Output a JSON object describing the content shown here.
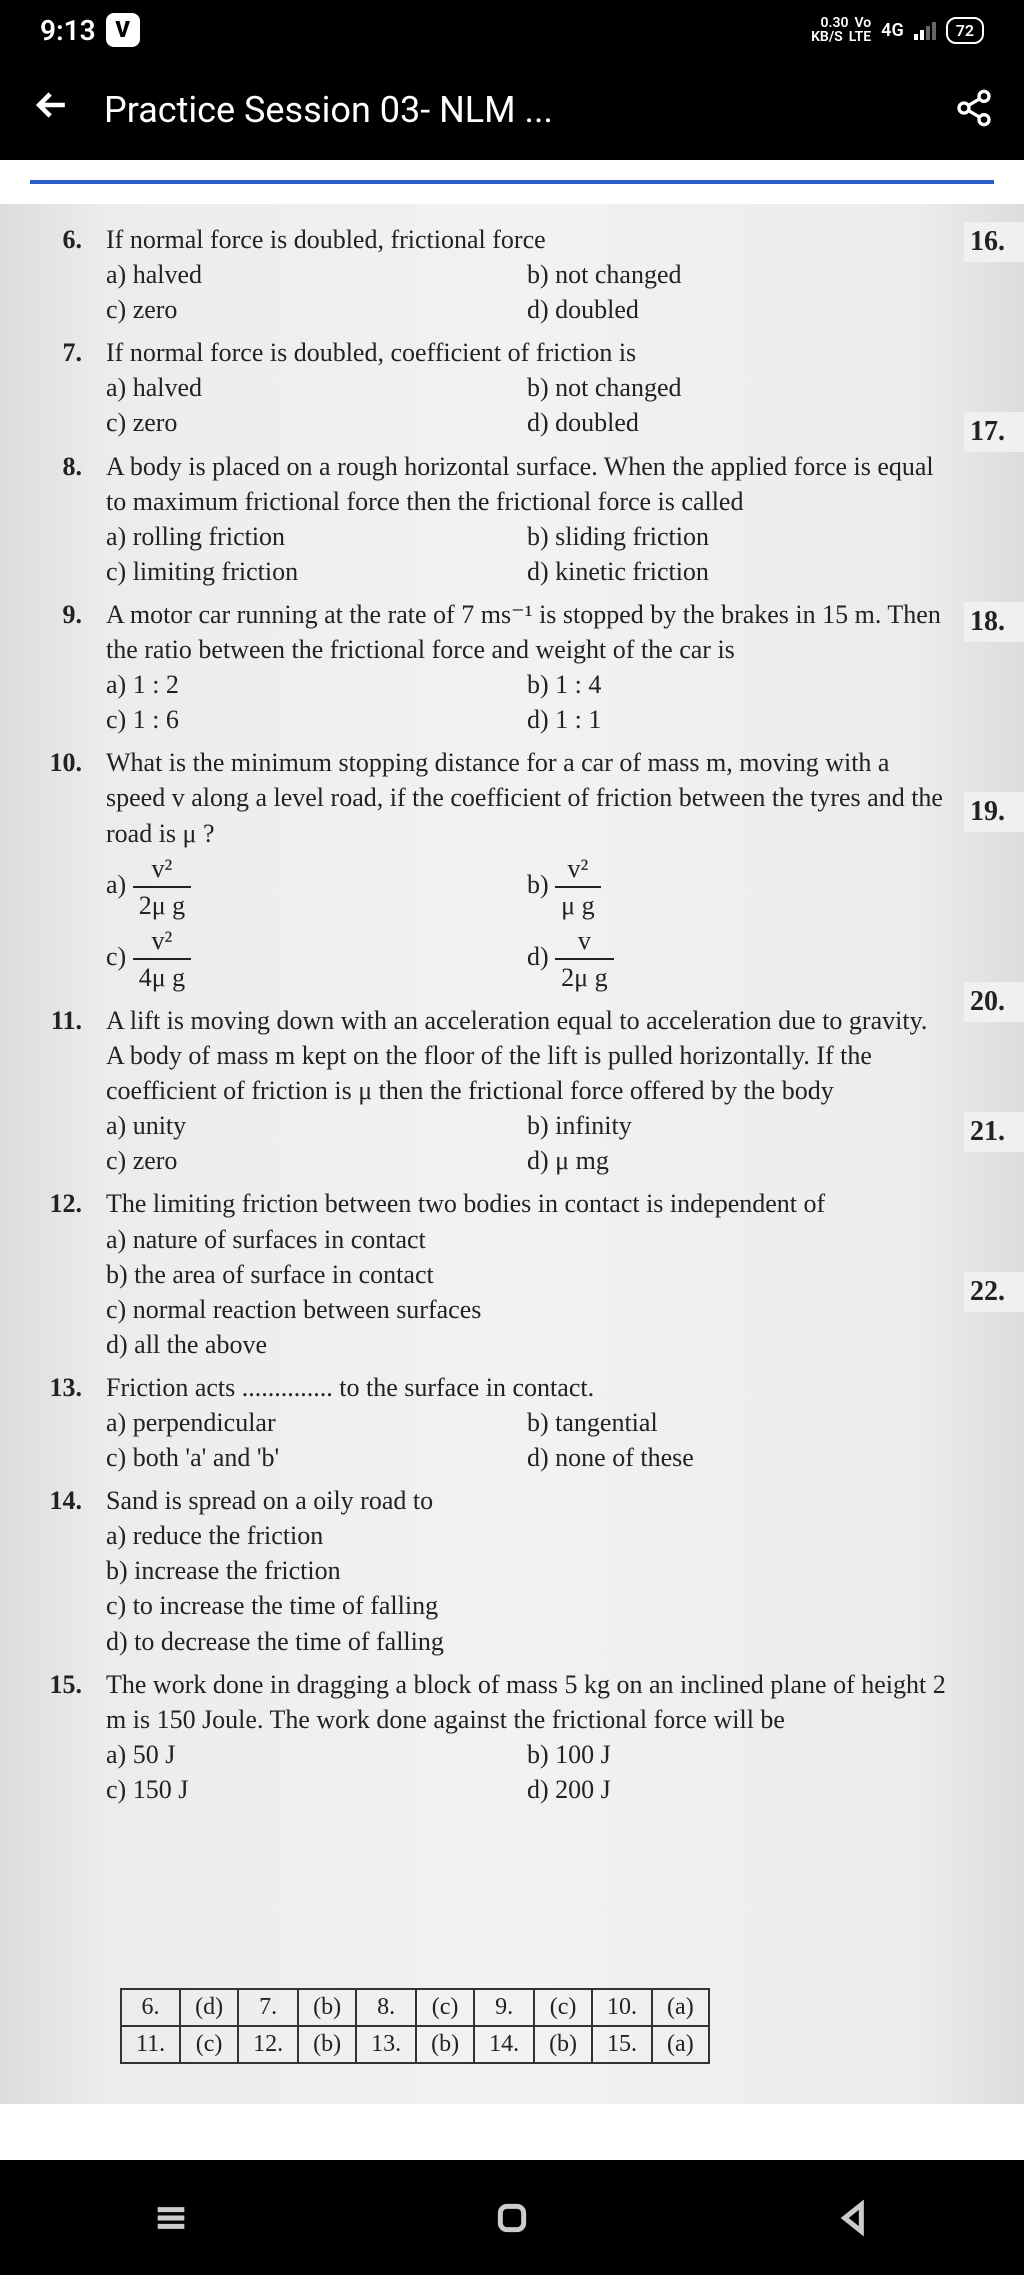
{
  "status": {
    "time": "9:13",
    "v_badge": "V",
    "speed_top": "0.30",
    "speed_bot": "KB/S",
    "net1": "Vo",
    "net2": "LTE",
    "sig_label": "4G",
    "battery": "72"
  },
  "appbar": {
    "title": "Practice Session 03- NLM ..."
  },
  "right_numbers": [
    "16.",
    "17.",
    "18.",
    "19.",
    "20.",
    "21.",
    "22."
  ],
  "questions": [
    {
      "n": "6.",
      "stem": "If normal force is doubled, frictional force",
      "opts": [
        "a)  halved",
        "b)  not changed",
        "c)  zero",
        "d)  doubled"
      ]
    },
    {
      "n": "7.",
      "stem": "If normal force is doubled, coefficient of friction is",
      "opts": [
        "a)  halved",
        "b)  not changed",
        "c)  zero",
        "d)  doubled"
      ]
    },
    {
      "n": "8.",
      "stem": "A body is placed on a rough horizontal surface. When the applied force is equal to maximum frictional force then the frictional force is called",
      "opts": [
        "a)  rolling friction",
        "b)  sliding friction",
        "c)  limiting friction",
        "d)  kinetic friction"
      ]
    },
    {
      "n": "9.",
      "stem": "A motor car running at the rate of 7 ms⁻¹ is stopped by the brakes in 15 m. Then the ratio between the frictional force and weight of the car is",
      "opts": [
        "a)  1 : 2",
        "b)  1 : 4",
        "c)  1 : 6",
        "d)  1 : 1"
      ]
    },
    {
      "n": "10.",
      "stem": "What is the minimum stopping distance for a car of mass m, moving with a speed v along a level road, if the coefficient of friction between the tyres and the road is μ ?",
      "frac_opts": [
        {
          "label": "a)",
          "top": "v²",
          "bot": "2μ g"
        },
        {
          "label": "b)",
          "top": "v²",
          "bot": "μ g"
        },
        {
          "label": "c)",
          "top": "v²",
          "bot": "4μ g"
        },
        {
          "label": "d)",
          "top": "v",
          "bot": "2μ g"
        }
      ]
    },
    {
      "n": "11.",
      "stem": "A lift is moving down with an acceleration equal to acceleration due to gravity. A body of mass m kept on the floor of the lift is pulled horizontally. If the coefficient of friction is μ then the frictional force offered by the body",
      "opts": [
        "a)  unity",
        "b)  infinity",
        "c)  zero",
        "d)  μ mg"
      ]
    },
    {
      "n": "12.",
      "stem": "The limiting friction between two bodies in contact is independent of",
      "opts_single": [
        "a)  nature of surfaces in contact",
        "b)  the area of surface in contact",
        "c)  normal reaction between surfaces",
        "d)  all the above"
      ]
    },
    {
      "n": "13.",
      "stem": "Friction acts .............. to the surface in contact.",
      "opts": [
        "a)  perpendicular",
        "b)  tangential",
        "c)  both 'a' and 'b'",
        "d)  none of these"
      ]
    },
    {
      "n": "14.",
      "stem": "Sand is spread on a oily road to",
      "opts_single": [
        "a)  reduce the friction",
        "b)  increase the friction",
        "c)  to increase the time of falling",
        "d)  to decrease the time of falling"
      ]
    },
    {
      "n": "15.",
      "stem": "The work done in dragging a block of mass 5 kg on an inclined plane of height 2 m is 150 Joule. The work done against the frictional force will be",
      "opts": [
        "a)  50 J",
        "b)  100 J",
        "c)  150 J",
        "d)  200 J"
      ]
    }
  ],
  "answers": [
    [
      "6.",
      "(d)",
      "7.",
      "(b)",
      "8.",
      "(c)",
      "9.",
      "(c)",
      "10.",
      "(a)"
    ],
    [
      "11.",
      "(c)",
      "12.",
      "(b)",
      "13.",
      "(b)",
      "14.",
      "(b)",
      "15.",
      "(a)"
    ]
  ]
}
